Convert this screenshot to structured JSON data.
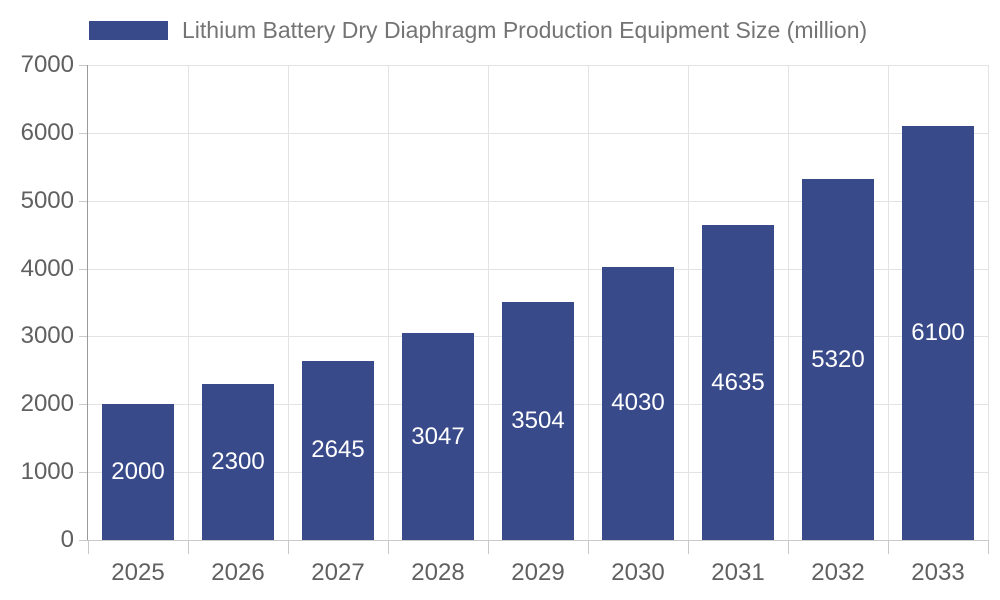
{
  "chart_data": {
    "type": "bar",
    "legend": "Lithium Battery Dry Diaphragm Production Equipment Size (million)",
    "categories": [
      "2025",
      "2026",
      "2027",
      "2028",
      "2029",
      "2030",
      "2031",
      "2032",
      "2033"
    ],
    "values": [
      2000,
      2300,
      2645,
      3047,
      3504,
      4030,
      4635,
      5320,
      6100
    ],
    "title": "",
    "xlabel": "",
    "ylabel": "",
    "ylim": [
      0,
      7000
    ],
    "ytick_step": 1000,
    "grid": true,
    "legend_position": "top-left",
    "bar_color": "#394A8B",
    "bar_label_color": "#ffffff",
    "axis_text_color": "#606060",
    "legend_text_color": "#747474",
    "gridline_color": "#e3e3e3"
  }
}
